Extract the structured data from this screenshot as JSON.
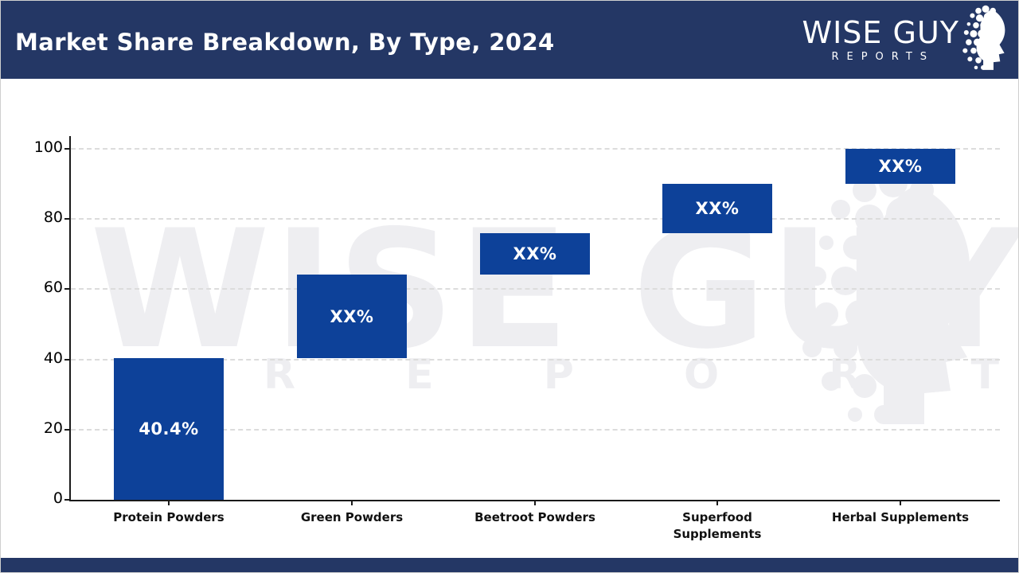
{
  "header": {
    "title": "Market Share Breakdown, By Type, 2024"
  },
  "logo": {
    "primary": "WISE GUY",
    "secondary": "REPORTS"
  },
  "watermark": {
    "primary": "WISE GUY",
    "secondary": "R E P O R T S"
  },
  "chart_data": {
    "type": "bar",
    "subtype": "waterfall",
    "title": "Market Share Breakdown, By Type, 2024",
    "categories": [
      "Protein Powders",
      "Green Powders",
      "Beetroot Powders",
      "Superfood\nSupplements",
      "Herbal Supplements"
    ],
    "segments": [
      {
        "category": "Protein Powders",
        "start": 0,
        "end": 40.4,
        "label": "40.4%"
      },
      {
        "category": "Green Powders",
        "start": 40.4,
        "end": 64.1,
        "label": "XX%"
      },
      {
        "category": "Beetroot Powders",
        "start": 64.1,
        "end": 75.9,
        "label": "XX%"
      },
      {
        "category": "Superfood Supplements",
        "start": 75.9,
        "end": 90,
        "label": "XX%"
      },
      {
        "category": "Herbal Supplements",
        "start": 90,
        "end": 100,
        "label": "XX%"
      }
    ],
    "ylim": [
      0,
      100
    ],
    "yticks": [
      0,
      20,
      40,
      60,
      80,
      100
    ],
    "xlabel": "",
    "ylabel": "",
    "legend": "none",
    "grid": "horizontal-dashed"
  },
  "colors": {
    "header_bg": "#243765",
    "footer_bg": "#243765",
    "bar": "#0d4199",
    "grid": "#dcdcdc",
    "axis": "#1a1a1a",
    "watermark": "#eeeef1"
  }
}
